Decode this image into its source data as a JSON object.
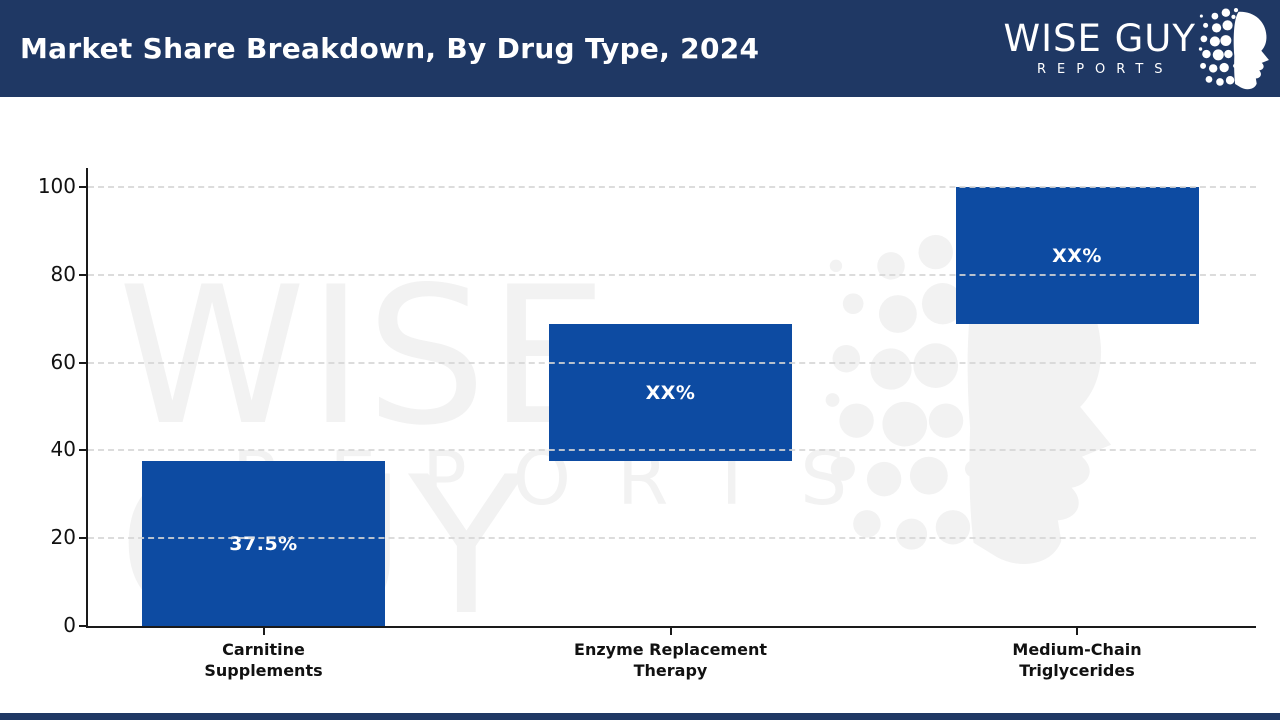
{
  "header": {
    "title": "Market Share Breakdown, By Drug Type, 2024",
    "logo": {
      "line1": "WISE GUY",
      "line2": "REPORTS"
    }
  },
  "watermark": {
    "line1": "WISE GUY",
    "line2": "REPORTS"
  },
  "footer": {
    "visible": true
  },
  "colors": {
    "header_bg": "#1f3864",
    "bar": "#0d4ba2",
    "grid": "#d6d6d6",
    "axis": "#1a1a1a",
    "watermark": "#f2f2f2",
    "title_text": "#ffffff",
    "bar_label_text": "#ffffff"
  },
  "chart_data": {
    "type": "bar",
    "subtype": "stacked-waterfall",
    "title": "Market Share Breakdown, By Drug Type, 2024",
    "categories": [
      "Carnitine Supplements",
      "Enzyme Replacement Therapy",
      "Medium-Chain Triglycerides"
    ],
    "xtick_labels": [
      "Carnitine\nSupplements",
      "Enzyme Replacement\nTherapy",
      "Medium-Chain\nTriglycerides"
    ],
    "segments": [
      {
        "category": "Carnitine Supplements",
        "start": 0,
        "end": 37.5,
        "label": "37.5%"
      },
      {
        "category": "Enzyme Replacement Therapy",
        "start": 37.5,
        "end": 68.75,
        "label": "XX%",
        "value_masked": true
      },
      {
        "category": "Medium-Chain Triglycerides",
        "start": 68.75,
        "end": 100,
        "label": "XX%",
        "value_masked": true
      }
    ],
    "yticks": [
      0,
      20,
      40,
      60,
      80,
      100
    ],
    "ylim": [
      0,
      104
    ],
    "xlabel": "",
    "ylabel": "",
    "grid": "horizontal-dashed-over-bars",
    "legend": "none",
    "bar_color": "#0d4ba2"
  }
}
